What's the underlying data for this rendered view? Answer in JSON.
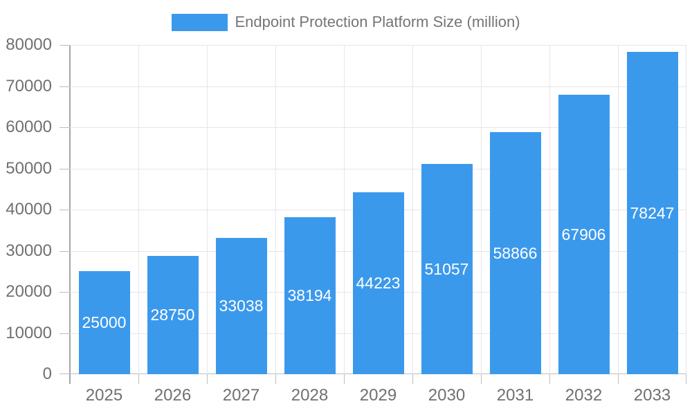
{
  "chart_data": {
    "type": "bar",
    "title": "Endpoint Protection Platform Size (million)",
    "legend": {
      "label": "Endpoint Protection Platform Size (million)",
      "position": "top-center"
    },
    "categories": [
      "2025",
      "2026",
      "2027",
      "2028",
      "2029",
      "2030",
      "2031",
      "2032",
      "2033"
    ],
    "series": [
      {
        "name": "Endpoint Protection Platform Size (million)",
        "values": [
          25000,
          28750,
          33038,
          38194,
          44223,
          51057,
          58866,
          67906,
          78247
        ]
      }
    ],
    "xlabel": "",
    "ylabel": "",
    "ylim": [
      0,
      80000
    ],
    "y_ticks": [
      0,
      10000,
      20000,
      30000,
      40000,
      50000,
      60000,
      70000,
      80000
    ],
    "grid": "horizontal-and-vertical",
    "value_labels": "inside-center",
    "colors": {
      "bar": "#3B99EC",
      "axis_text": "#707070",
      "legend_text": "#757575",
      "gridline": "#E6E6E6",
      "axis_line": "#A6A6A6",
      "tick": "#BDBDBD",
      "value_label": "#FFFFFF",
      "background": "#FFFFFF"
    }
  }
}
